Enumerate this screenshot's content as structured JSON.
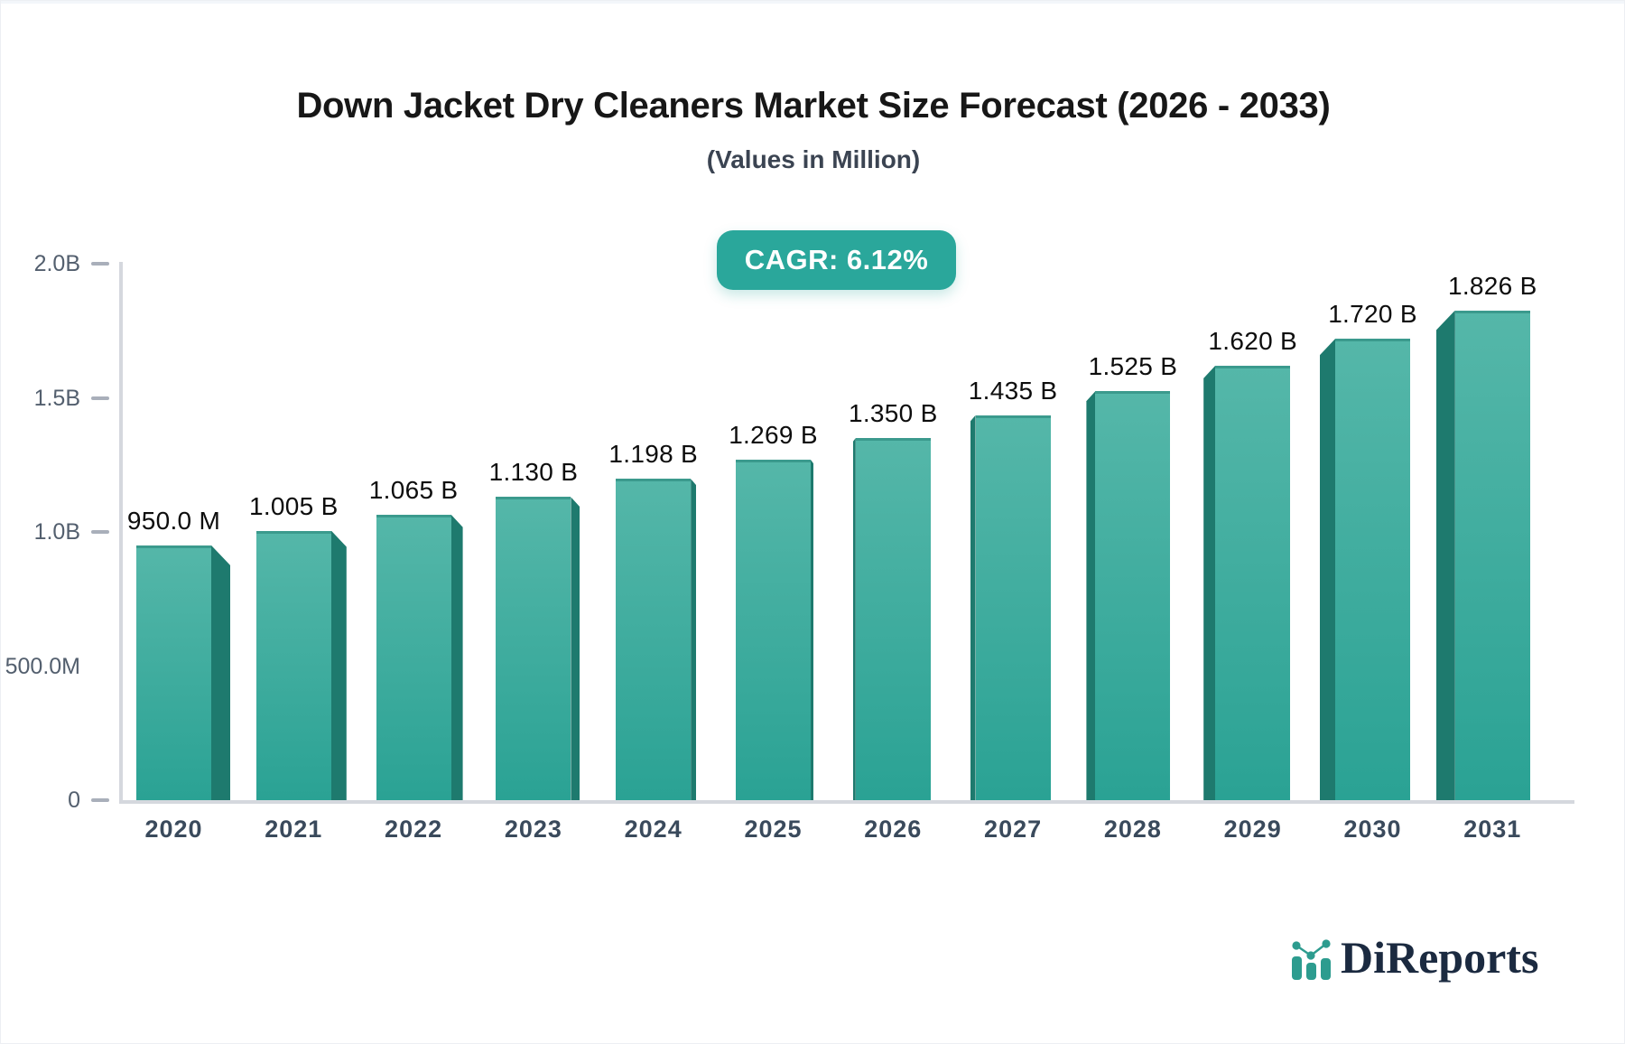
{
  "title": "Down Jacket Dry Cleaners Market Size Forecast (2026 - 2033)",
  "subtitle": "(Values in Million)",
  "badge": {
    "label": "CAGR: 6.12%"
  },
  "logo": {
    "text": "DiReports",
    "icon": "mini-bar-chart-icon"
  },
  "chart_data": {
    "type": "bar",
    "title": "Down Jacket Dry Cleaners Market Size Forecast (2026 - 2033)",
    "subtitle": "(Values in Million)",
    "xlabel": "",
    "ylabel": "",
    "categories": [
      "2020",
      "2021",
      "2022",
      "2023",
      "2024",
      "2025",
      "2026",
      "2027",
      "2028",
      "2029",
      "2030",
      "2031"
    ],
    "values_millions": [
      950.0,
      1005,
      1065,
      1130,
      1198,
      1269,
      1350,
      1435,
      1525,
      1620,
      1720,
      1826
    ],
    "value_labels": [
      "950.0 M",
      "1.005 B",
      "1.065 B",
      "1.130 B",
      "1.198 B",
      "1.269 B",
      "1.350 B",
      "1.435 B",
      "1.525 B",
      "1.620 B",
      "1.720 B",
      "1.826 B"
    ],
    "ylim_millions": [
      0,
      2000
    ],
    "yticks": [
      {
        "label": "2.0B",
        "value": 2000,
        "dash": true
      },
      {
        "label": "1.5B",
        "value": 1500,
        "dash": true
      },
      {
        "label": "1.0B",
        "value": 1000,
        "dash": true
      },
      {
        "label": "500.0M",
        "value": 500,
        "dash": false
      },
      {
        "label": "0",
        "value": 0,
        "dash": true
      }
    ],
    "grid": false,
    "legend_position": "none",
    "colors": {
      "bar_top": "#55B7A9",
      "bar_bottom": "#2AA294",
      "bar_side": "#1E7A6E",
      "badge_bg": "#2AA79B",
      "axis": "#D5D8DE",
      "tick_dash": "#A9AFBA",
      "logo_teal": "#2D9C8F",
      "logo_navy": "#1B2A40"
    }
  }
}
